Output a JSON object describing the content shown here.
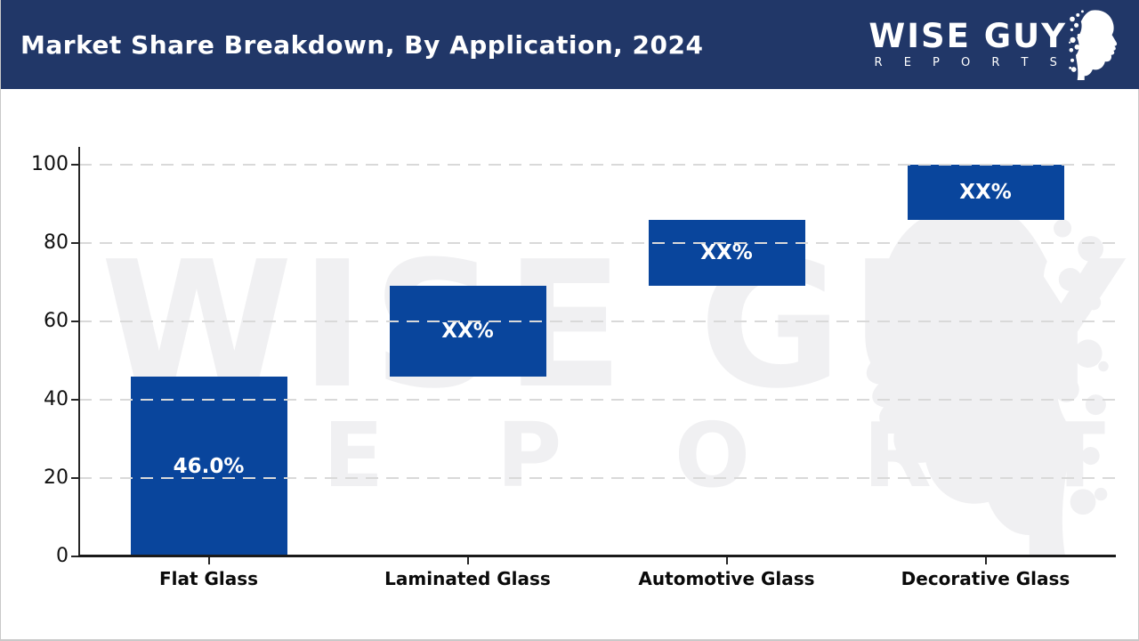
{
  "header": {
    "title": "Market Share Breakdown, By Application, 2024",
    "logo": {
      "line1": "WISE GUY",
      "line2": "R E P O R T S"
    }
  },
  "watermark": {
    "line1": "WISE GUY",
    "line2": "R E P O R T S"
  },
  "colors": {
    "header_bg": "#213768",
    "bar": "#09459C",
    "grid": "#d9d9d9",
    "axis": "#262626",
    "watermark": "#f0f0f2",
    "title_text": "#ffffff",
    "bar_label_text": "#ffffff"
  },
  "chart_data": {
    "type": "bar",
    "subtype": "waterfall",
    "title": "Market Share Breakdown, By Application, 2024",
    "xlabel": "",
    "ylabel": "",
    "categories": [
      "Flat Glass",
      "Laminated Glass",
      "Automotive Glass",
      "Decorative Glass"
    ],
    "segments": [
      {
        "category": "Flat Glass",
        "start": 0,
        "end": 46,
        "label": "46.0%"
      },
      {
        "category": "Laminated Glass",
        "start": 46,
        "end": 69,
        "label": "XX%"
      },
      {
        "category": "Automotive Glass",
        "start": 69,
        "end": 86,
        "label": "XX%"
      },
      {
        "category": "Decorative Glass",
        "start": 86,
        "end": 100,
        "label": "XX%"
      }
    ],
    "yticks": [
      0,
      20,
      40,
      60,
      80,
      100
    ],
    "ylim": [
      0,
      100
    ],
    "grid": "horizontal-dashed, drawn above bars",
    "legend": "none"
  }
}
